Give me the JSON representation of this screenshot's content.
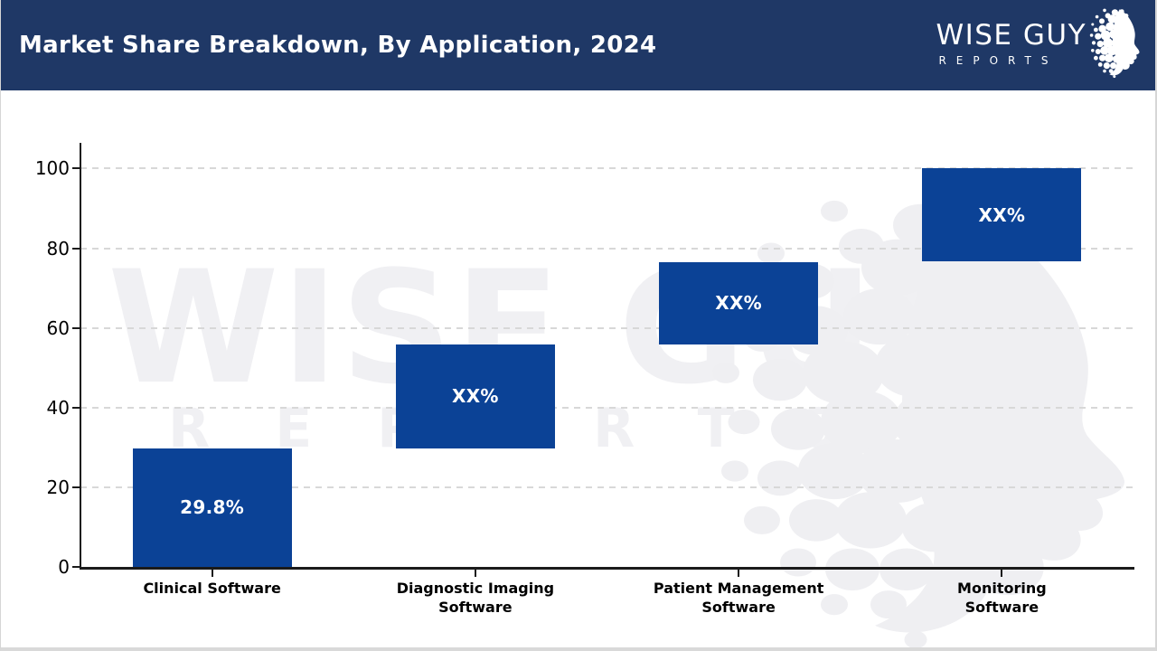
{
  "header": {
    "title": "Market Share Breakdown, By Application, 2024",
    "bg_color": "#1f3866",
    "logo": {
      "line1": "WISE GUY",
      "line2": "REPORTS"
    }
  },
  "watermark": {
    "line1": "WISE GUY",
    "line2": "REPORTS"
  },
  "chart_data": {
    "type": "bar",
    "subtype": "waterfall",
    "title": "Market Share Breakdown, By Application, 2024",
    "xlabel": "",
    "ylabel": "",
    "categories": [
      "Clinical Software",
      "Diagnostic Imaging Software",
      "Patient Management Software",
      "Monitoring Software"
    ],
    "tick_labels": [
      "Clinical Software",
      "Diagnostic Imaging\nSoftware",
      "Patient Management\nSoftware",
      "Monitoring\nSoftware"
    ],
    "bars": [
      {
        "category": "Clinical Software",
        "start": 0,
        "end": 29.8,
        "label": "29.8%"
      },
      {
        "category": "Diagnostic Imaging Software",
        "start": 29.8,
        "end": 55.8,
        "label": "XX%"
      },
      {
        "category": "Patient Management Software",
        "start": 55.8,
        "end": 76.6,
        "label": "XX%"
      },
      {
        "category": "Monitoring Software",
        "start": 76.8,
        "end": 100,
        "label": "XX%"
      }
    ],
    "yticks": [
      0,
      20,
      40,
      60,
      80,
      100
    ],
    "ylim": [
      0,
      106
    ],
    "bar_color": "#0b4296",
    "grid": "dashed horizontal",
    "legend": "none"
  }
}
